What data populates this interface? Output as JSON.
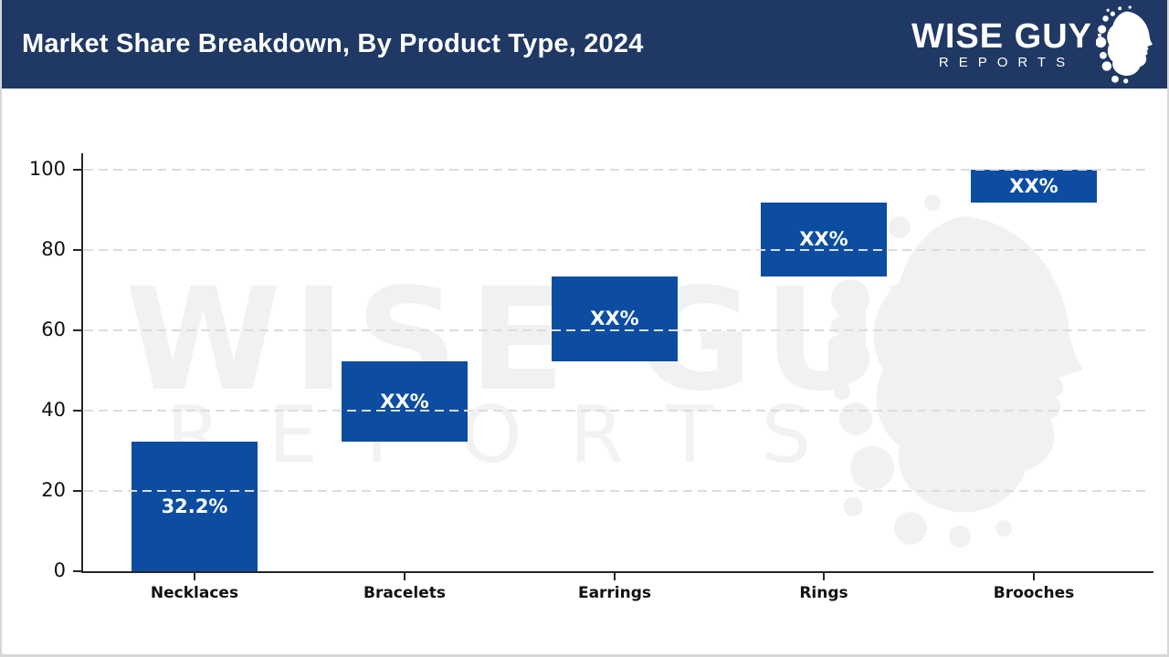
{
  "header": {
    "title": "Market Share Breakdown, By Product Type, 2024",
    "logo": {
      "line1": "WISE GUY",
      "line2": "REPORTS"
    }
  },
  "watermark": {
    "line1": "WISE GUY",
    "line2": "REPORTS"
  },
  "colors": {
    "header_bg": "#1f3864",
    "bar": "#0c4da2",
    "bar_label": "#ffffff",
    "grid": "#dcdcdc",
    "axis": "#262626",
    "watermark": "#f1f1f3"
  },
  "chart_data": {
    "type": "bar",
    "variant": "waterfall",
    "title": "Market Share Breakdown, By Product Type, 2024",
    "categories": [
      "Necklaces",
      "Bracelets",
      "Earrings",
      "Rings",
      "Brooches"
    ],
    "segments": [
      {
        "category": "Necklaces",
        "start": 0,
        "end": 32.2,
        "label": "32.2%"
      },
      {
        "category": "Bracelets",
        "start": 32.2,
        "end": 52.2,
        "label": "XX%"
      },
      {
        "category": "Earrings",
        "start": 52.2,
        "end": 73.5,
        "label": "XX%"
      },
      {
        "category": "Rings",
        "start": 73.5,
        "end": 91.8,
        "label": "XX%"
      },
      {
        "category": "Brooches",
        "start": 91.8,
        "end": 100,
        "label": "XX%"
      }
    ],
    "yticks": [
      0,
      20,
      40,
      60,
      80,
      100
    ],
    "ylim": [
      0,
      104.5
    ],
    "xlabel": "",
    "ylabel": "",
    "grid": "horizontal-dashed",
    "legend": "none"
  }
}
